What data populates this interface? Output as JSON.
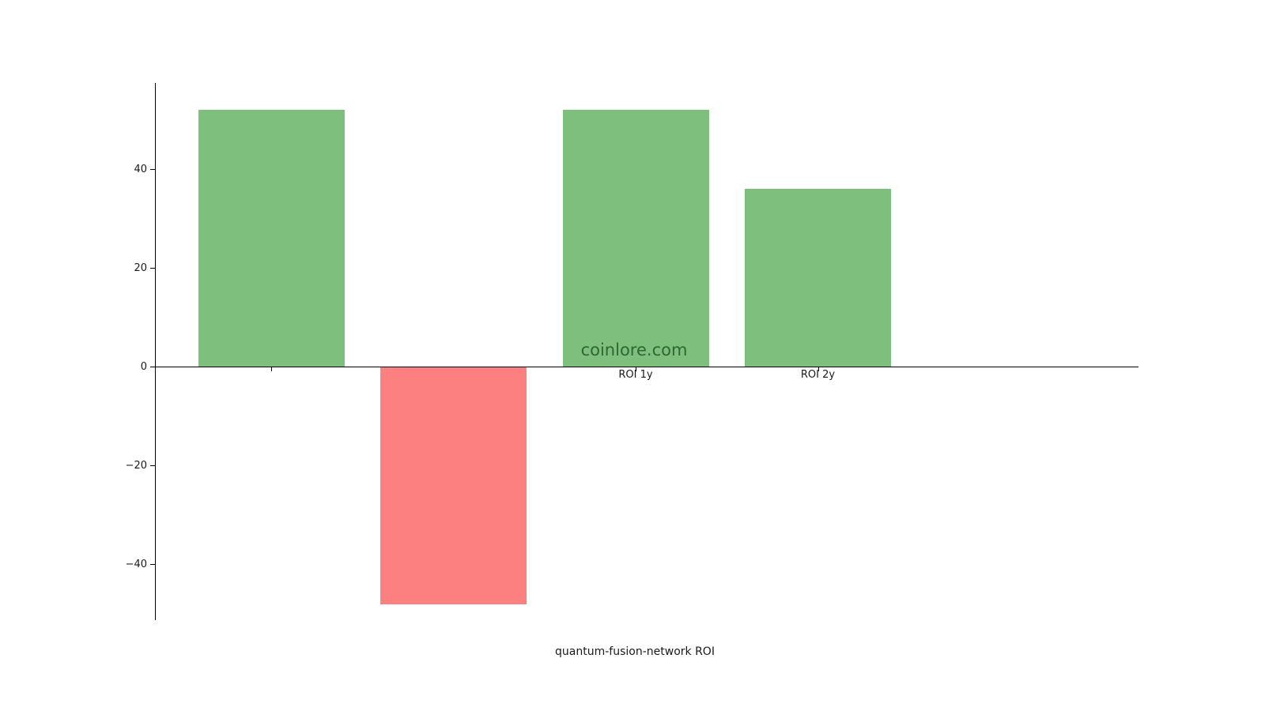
{
  "page": {
    "background": "#ffffff"
  },
  "watermark": {
    "text": "coinlore.com",
    "color": "#2f6633"
  },
  "chart_data": {
    "type": "bar",
    "title": "quantum-fusion-network ROI",
    "xlabel": "",
    "ylabel": "",
    "categories": [
      "",
      "",
      "ROI 1y",
      "ROI 2y"
    ],
    "values": [
      52,
      -48,
      52,
      36
    ],
    "bar_colors": [
      "#7ebf7e",
      "#fc8080",
      "#7ebf7e",
      "#7ebf7e"
    ],
    "positive_color": "#7ebf7e",
    "negative_color": "#fc8080",
    "y_ticks": [
      {
        "value": 40,
        "label": "40"
      },
      {
        "value": 20,
        "label": "20"
      },
      {
        "value": 0,
        "label": "0"
      },
      {
        "value": -20,
        "label": "−20"
      },
      {
        "value": -40,
        "label": "−40"
      }
    ],
    "ylim": [
      -51,
      57
    ],
    "grid": false,
    "legend": false,
    "axis_color": "#000000",
    "x_axis_at_zero": true
  }
}
